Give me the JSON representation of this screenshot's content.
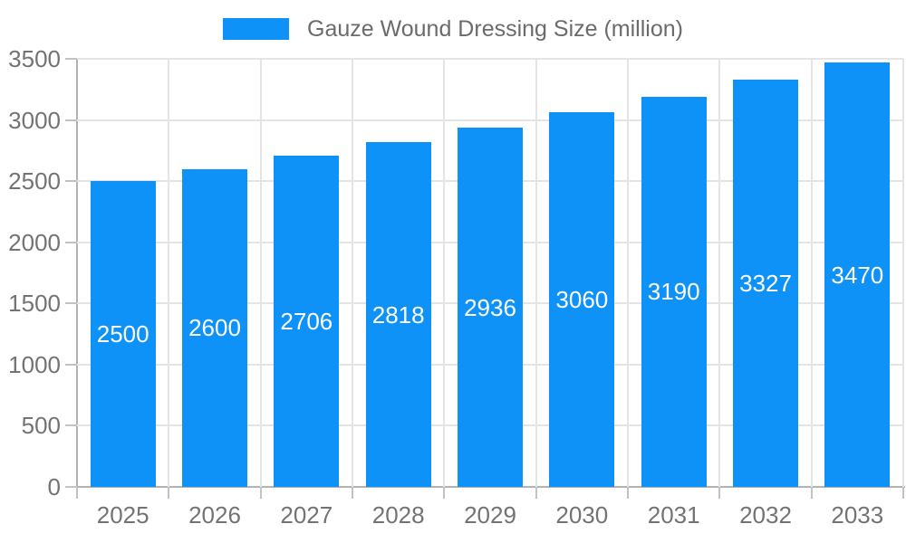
{
  "legend": {
    "label": "Gauze Wound Dressing Size (million)"
  },
  "chart_data": {
    "type": "bar",
    "title": "Gauze Wound Dressing Size (million)",
    "categories": [
      "2025",
      "2026",
      "2027",
      "2028",
      "2029",
      "2030",
      "2031",
      "2032",
      "2033"
    ],
    "values": [
      2500,
      2600,
      2706,
      2818,
      2936,
      3060,
      3190,
      3327,
      3470
    ],
    "xlabel": "",
    "ylabel": "",
    "ylim": [
      0,
      3500
    ],
    "ytick_step": 500,
    "yticks": [
      0,
      500,
      1000,
      1500,
      2000,
      2500,
      3000,
      3500
    ],
    "grid": true,
    "legend_position": "top-center",
    "value_label_position": "centered-inside-bars"
  },
  "colors": {
    "bar": "#0e92f8",
    "grid_line": "#e4e4e4",
    "axis_line": "#b3b3b3",
    "tick_mark": "#c2c2c2",
    "tick_label": "#737373",
    "legend_text": "#6b6b6b",
    "bar_value_label": "#ffffff",
    "background": "#ffffff"
  }
}
